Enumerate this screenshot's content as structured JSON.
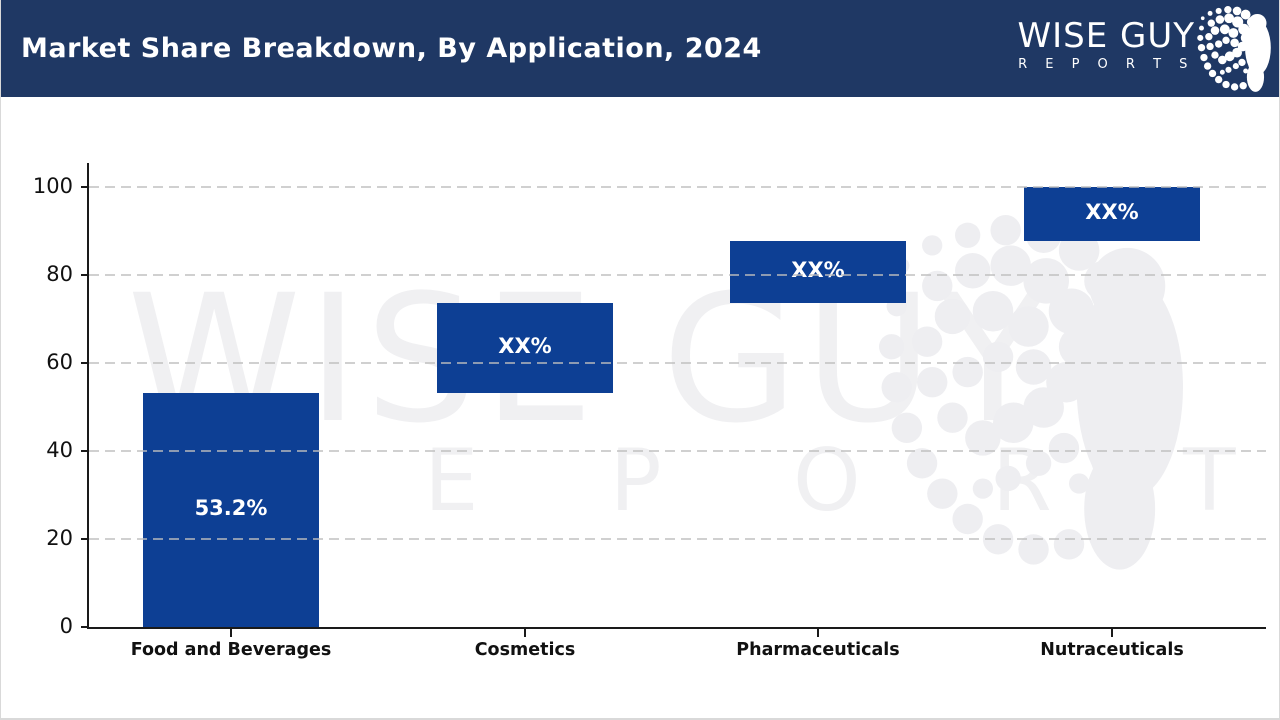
{
  "header": {
    "title": "Market Share Breakdown, By Application, 2024",
    "logo": {
      "line1": "WISE GUY",
      "line2": "R E P O R T S"
    }
  },
  "watermark": {
    "line1": "WISE GUY",
    "line2": "R E P O R T S"
  },
  "colors": {
    "header_bg": "#1f3864",
    "bar": "#0d3f94",
    "bar_label_text": "#ffffff",
    "gridline": "#d9d9d9",
    "axis": "#1a1a1a",
    "watermark": "#f0f0f2"
  },
  "chart_data": {
    "type": "bar",
    "subtype": "waterfall (floating cumulative bars)",
    "title": "Market Share Breakdown, By Application, 2024",
    "categories": [
      "Food and Beverages",
      "Cosmetics",
      "Pharmaceuticals",
      "Nutraceuticals"
    ],
    "series": [
      {
        "name": "Market Share",
        "segments": [
          {
            "start": 0,
            "end": 53.2,
            "label": "53.2%"
          },
          {
            "start": 53.2,
            "end": 73.6,
            "label": "XX%"
          },
          {
            "start": 73.6,
            "end": 87.7,
            "label": "XX%"
          },
          {
            "start": 87.7,
            "end": 100,
            "label": "XX%"
          }
        ]
      }
    ],
    "bar_labels": [
      "53.2%",
      "XX%",
      "XX%",
      "XX%"
    ],
    "xlabel": "",
    "ylabel": "",
    "yticks": [
      0,
      20,
      40,
      60,
      80,
      100
    ],
    "ylim": [
      0,
      100
    ],
    "grid": "horizontal dashed, drawn over bars",
    "legend": "none"
  }
}
